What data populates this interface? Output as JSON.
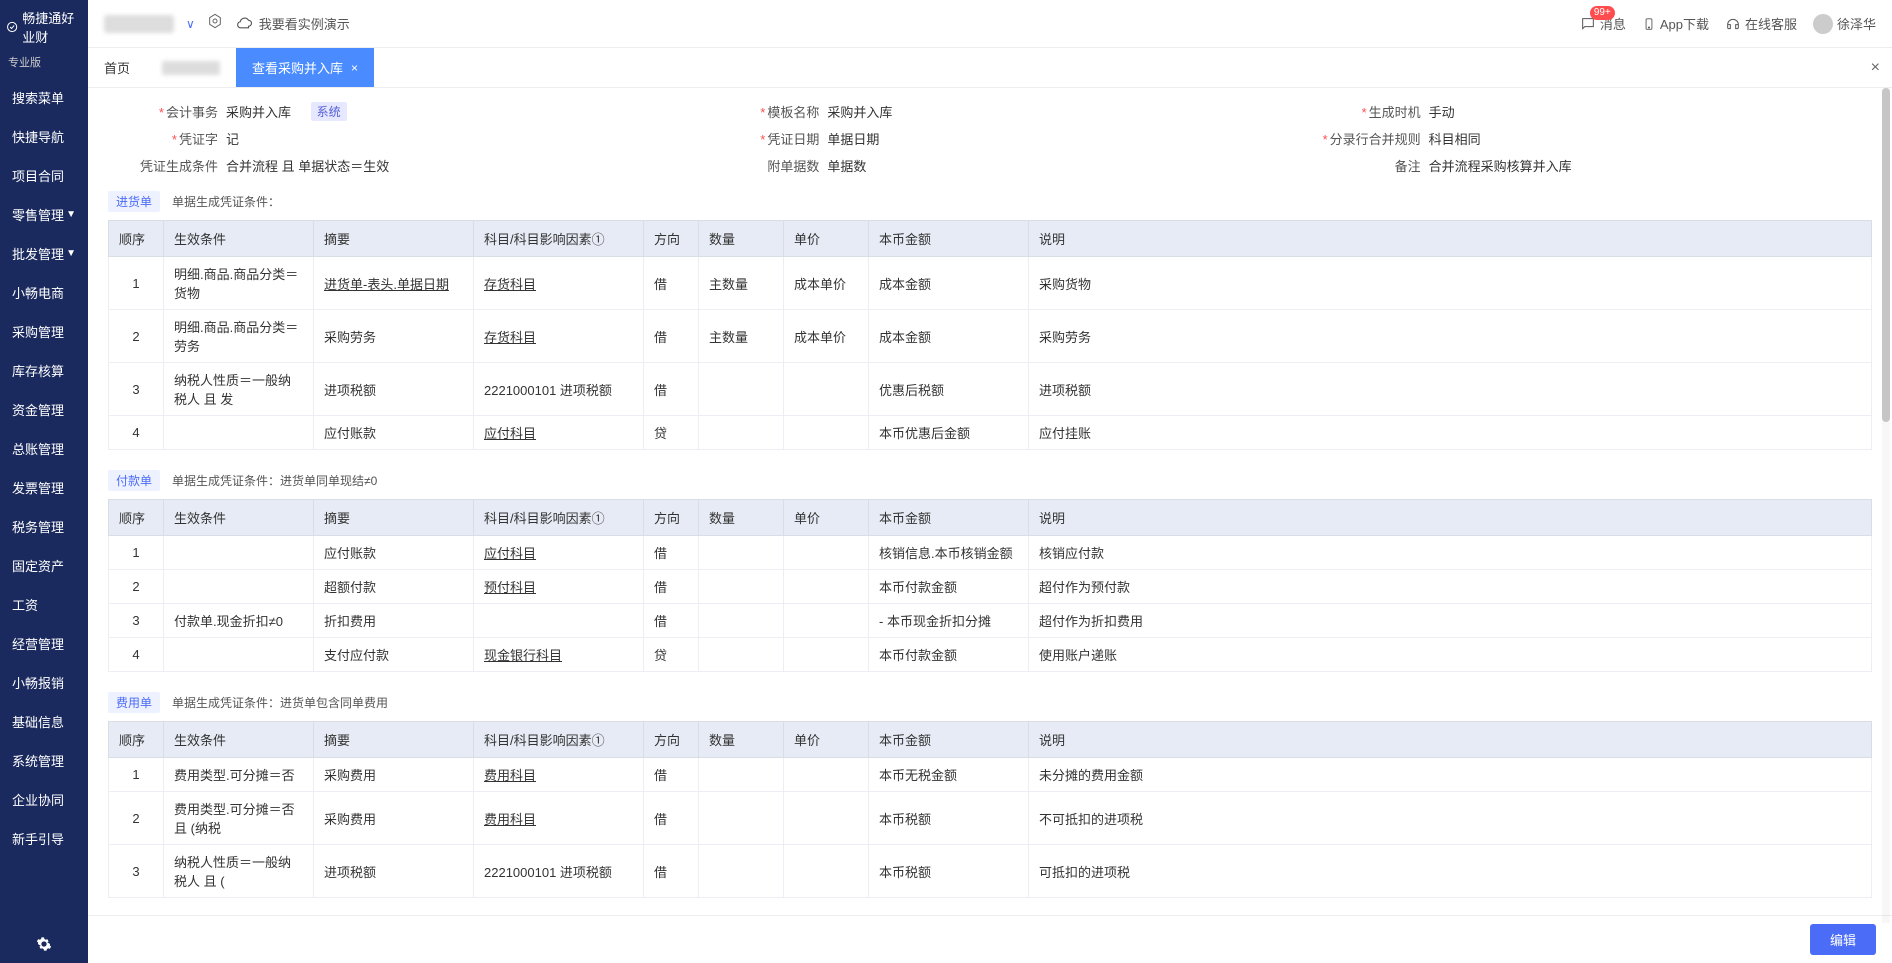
{
  "sidebar": {
    "logo": "畅捷通好业财",
    "edition": "专业版",
    "items": [
      {
        "label": "搜索菜单"
      },
      {
        "label": "快捷导航"
      },
      {
        "label": "项目合同"
      },
      {
        "label": "零售管理",
        "caret": true
      },
      {
        "label": "批发管理",
        "caret": true
      },
      {
        "label": "小畅电商"
      },
      {
        "label": "采购管理"
      },
      {
        "label": "库存核算"
      },
      {
        "label": "资金管理"
      },
      {
        "label": "总账管理"
      },
      {
        "label": "发票管理"
      },
      {
        "label": "税务管理"
      },
      {
        "label": "固定资产"
      },
      {
        "label": "工资"
      },
      {
        "label": "经营管理"
      },
      {
        "label": "小畅报销"
      },
      {
        "label": "基础信息"
      },
      {
        "label": "系统管理"
      },
      {
        "label": "企业协同"
      },
      {
        "label": "新手引导"
      }
    ]
  },
  "topbar": {
    "demo": "我要看实例演示",
    "right": {
      "msg": "消息",
      "badge": "99+",
      "download": "App下载",
      "service": "在线客服",
      "user": "徐泽华"
    }
  },
  "tabs": {
    "home": "首页",
    "active": "查看采购并入库"
  },
  "header": {
    "r1c1_lbl": "会计事务",
    "r1c1_val": "采购并入库",
    "r1c1_tag": "系统",
    "r1c2_lbl": "模板名称",
    "r1c2_val": "采购并入库",
    "r1c3_lbl": "生成时机",
    "r1c3_val": "手动",
    "r2c1_lbl": "凭证字",
    "r2c1_val": "记",
    "r2c2_lbl": "凭证日期",
    "r2c2_val": "单据日期",
    "r2c3_lbl": "分录行合并规则",
    "r2c3_val": "科目相同",
    "r3c1_lbl": "凭证生成条件",
    "r3c1_val": "合并流程 且 单据状态＝生效",
    "r3c2_lbl": "附单据数",
    "r3c2_val": "单据数",
    "r3c3_lbl": "备注",
    "r3c3_val": "合并流程采购核算并入库"
  },
  "cols": {
    "seq": "顺序",
    "cond": "生效条件",
    "summary": "摘要",
    "subj": "科目/科目影响因素①",
    "dir": "方向",
    "qty": "数量",
    "price": "单价",
    "amt": "本币金额",
    "desc": "说明"
  },
  "section1": {
    "tag": "进货单",
    "cond": "单据生成凭证条件：",
    "rows": [
      {
        "seq": "1",
        "cond": "明细.商品.商品分类＝货物",
        "summary": "进货单-表头.单据日期",
        "subj": "存货科目",
        "dir": "借",
        "qty": "主数量",
        "price": "成本单价",
        "amt": "成本金额",
        "desc": "采购货物"
      },
      {
        "seq": "2",
        "cond": "明细.商品.商品分类＝劳务",
        "summary": "采购劳务",
        "subj": "存货科目",
        "dir": "借",
        "qty": "主数量",
        "price": "成本单价",
        "amt": "成本金额",
        "desc": "采购劳务"
      },
      {
        "seq": "3",
        "cond": "纳税人性质＝一般纳税人 且 发",
        "summary": "进项税额",
        "subj": "2221000101 进项税额",
        "dir": "借",
        "qty": "",
        "price": "",
        "amt": "优惠后税额",
        "desc": "进项税额"
      },
      {
        "seq": "4",
        "cond": "",
        "summary": "应付账款",
        "subj": "应付科目",
        "dir": "贷",
        "qty": "",
        "price": "",
        "amt": "本币优惠后金额",
        "desc": "应付挂账"
      }
    ]
  },
  "section2": {
    "tag": "付款单",
    "cond": "单据生成凭证条件：进货单同单现结≠0",
    "rows": [
      {
        "seq": "1",
        "cond": "",
        "summary": "应付账款",
        "subj": "应付科目",
        "dir": "借",
        "qty": "",
        "price": "",
        "amt": "核销信息.本币核销金额",
        "desc": "核销应付款"
      },
      {
        "seq": "2",
        "cond": "",
        "summary": "超额付款",
        "subj": "预付科目",
        "dir": "借",
        "qty": "",
        "price": "",
        "amt": "本币付款金额",
        "desc": "超付作为预付款"
      },
      {
        "seq": "3",
        "cond": "付款单.现金折扣≠0",
        "summary": "折扣费用",
        "subj": "",
        "dir": "借",
        "qty": "",
        "price": "",
        "amt": "- 本币现金折扣分摊",
        "desc": "超付作为折扣费用"
      },
      {
        "seq": "4",
        "cond": "",
        "summary": "支付应付款",
        "subj": "现金银行科目",
        "dir": "贷",
        "qty": "",
        "price": "",
        "amt": "本币付款金额",
        "desc": "使用账户递账"
      }
    ]
  },
  "section3": {
    "tag": "费用单",
    "cond": "单据生成凭证条件：进货单包含同单费用",
    "rows": [
      {
        "seq": "1",
        "cond": "费用类型.可分摊＝否",
        "summary": "采购费用",
        "subj": "费用科目",
        "dir": "借",
        "qty": "",
        "price": "",
        "amt": "本币无税金额",
        "desc": "未分摊的费用金额"
      },
      {
        "seq": "2",
        "cond": "费用类型.可分摊＝否 且 (纳税",
        "summary": "采购费用",
        "subj": "费用科目",
        "dir": "借",
        "qty": "",
        "price": "",
        "amt": "本币税额",
        "desc": "不可抵扣的进项税"
      },
      {
        "seq": "3",
        "cond": "纳税人性质＝一般纳税人 且 (",
        "summary": "进项税额",
        "subj": "2221000101 进项税额",
        "dir": "借",
        "qty": "",
        "price": "",
        "amt": "本币税额",
        "desc": "可抵扣的进项税"
      }
    ]
  },
  "footer": {
    "edit": "编辑"
  }
}
